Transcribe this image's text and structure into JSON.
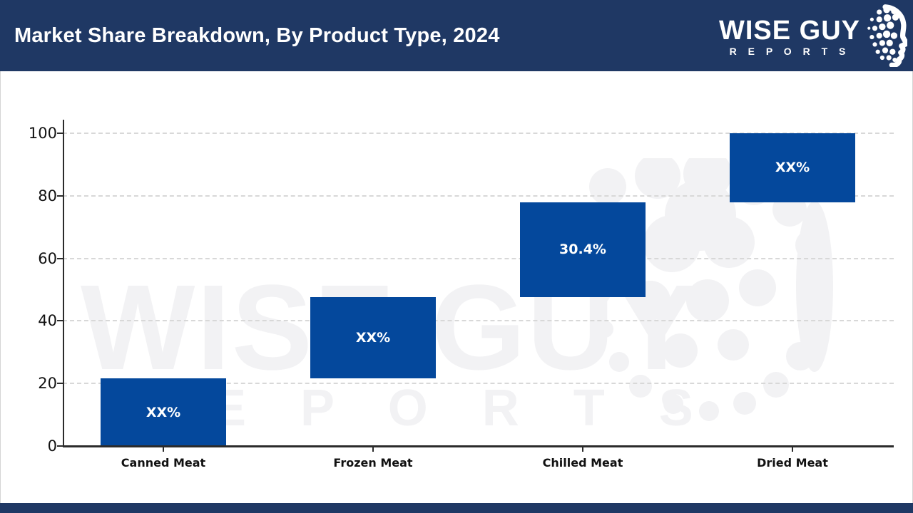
{
  "header": {
    "title": "Market Share Breakdown, By Product Type, 2024",
    "logo": {
      "wordmark": "WISE GUY",
      "subtext": "R E P O R T S",
      "head_icon": "dotted-head-profile"
    }
  },
  "watermark": {
    "wordmark": "WISE GUY",
    "subtext": "R E P O R T S",
    "head_icon": "dotted-head-profile"
  },
  "colors": {
    "header_bg": "#1f3864",
    "footer_bg": "#1f3864",
    "bar_fill": "#04489c",
    "bar_label": "#ffffff",
    "grid_line": "#d8d8d8",
    "axis_line": "#2b2b2b",
    "tick_text": "#111111",
    "watermark": "#f2f2f4",
    "page_bg": "#ffffff"
  },
  "chart_data": {
    "type": "bar",
    "variant": "waterfall",
    "title": "Market Share Breakdown, By Product Type, 2024",
    "categories": [
      "Canned Meat",
      "Frozen Meat",
      "Chilled Meat",
      "Dried Meat"
    ],
    "series": [
      {
        "name": "Market share (%)",
        "segments": [
          {
            "category": "Canned Meat",
            "start": 0,
            "end": 21.6,
            "label": "XX%"
          },
          {
            "category": "Frozen Meat",
            "start": 21.6,
            "end": 47.6,
            "label": "XX%"
          },
          {
            "category": "Chilled Meat",
            "start": 47.6,
            "end": 78.0,
            "label": "30.4%"
          },
          {
            "category": "Dried Meat",
            "start": 78.0,
            "end": 100.0,
            "label": "XX%"
          }
        ]
      }
    ],
    "xlabel": "",
    "ylabel": "",
    "ylim": [
      0,
      105
    ],
    "yticks": [
      0,
      20,
      40,
      60,
      80,
      100
    ],
    "grid": {
      "horizontal": true,
      "style": "dashed"
    },
    "legend": null
  }
}
